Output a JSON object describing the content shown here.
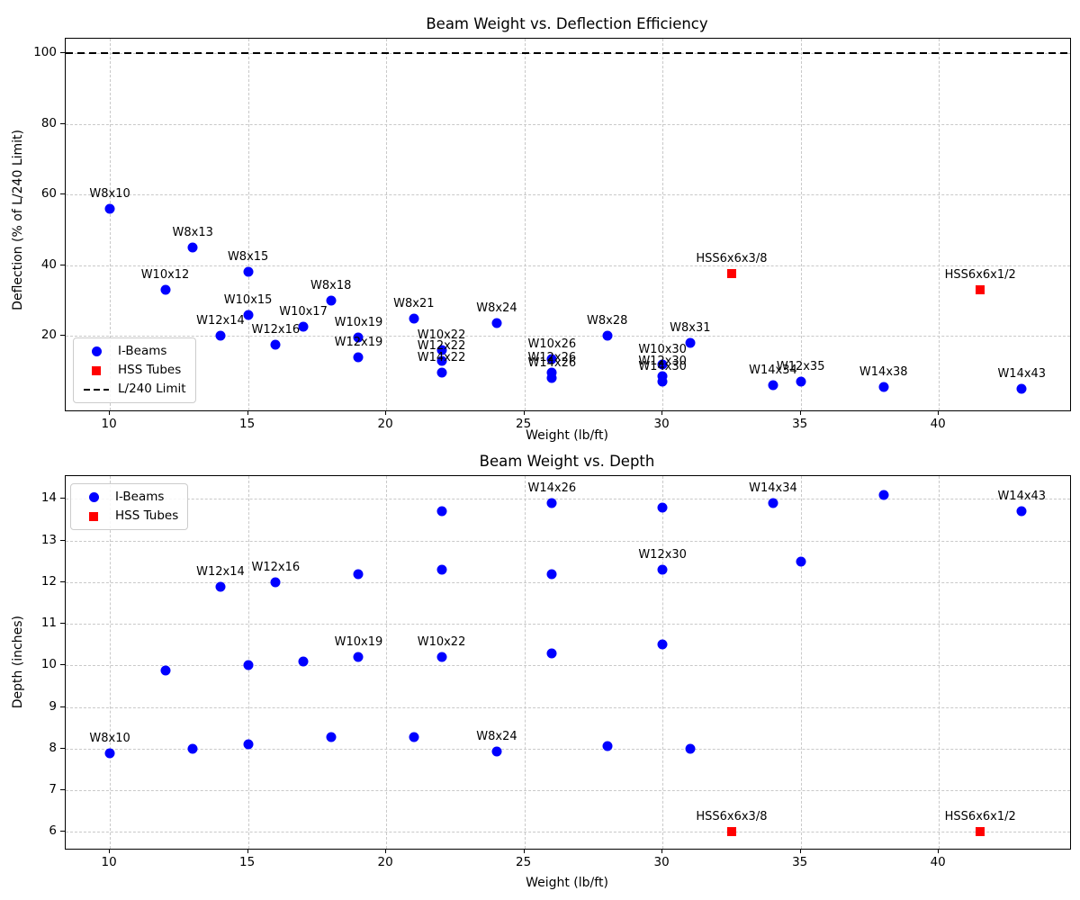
{
  "figure": {
    "background": "#ffffff"
  },
  "colors": {
    "ibeam": "#0000ff",
    "hss": "#ff0000",
    "limit_line": "#000000",
    "grid": "#c9c9c9"
  },
  "chart_data": [
    {
      "type": "scatter",
      "title": "Beam Weight vs. Deflection Efficiency",
      "xlabel": "Weight (lb/ft)",
      "ylabel": "Deflection (% of L/240 Limit)",
      "xlim": [
        8.4,
        44.75
      ],
      "ylim": [
        -1.1,
        104.1
      ],
      "xticks": [
        10,
        15,
        20,
        25,
        30,
        35,
        40
      ],
      "yticks": [
        20,
        40,
        60,
        80,
        100
      ],
      "grid": true,
      "legend_position": "lower left",
      "legend": [
        {
          "label": "I-Beams",
          "marker": "circle",
          "color": "#0000ff"
        },
        {
          "label": "HSS Tubes",
          "marker": "square",
          "color": "#ff0000"
        },
        {
          "label": "L/240 Limit",
          "marker": "dash",
          "color": "#000000"
        }
      ],
      "hline": {
        "y": 100,
        "style": "dashed",
        "color": "#000000",
        "label": "L/240 Limit"
      },
      "series": [
        {
          "name": "I-Beams",
          "marker": "circle",
          "color": "#0000ff",
          "points": [
            {
              "label": "W8x10",
              "x": 10,
              "y": 56,
              "show_label": true
            },
            {
              "label": "W10x12",
              "x": 12,
              "y": 33,
              "show_label": true
            },
            {
              "label": "W8x13",
              "x": 13,
              "y": 45,
              "show_label": true
            },
            {
              "label": "W12x14",
              "x": 14,
              "y": 20,
              "show_label": true
            },
            {
              "label": "W8x15",
              "x": 15,
              "y": 38,
              "show_label": true
            },
            {
              "label": "W10x15",
              "x": 15,
              "y": 26,
              "show_label": true
            },
            {
              "label": "W12x16",
              "x": 16,
              "y": 17.5,
              "show_label": true
            },
            {
              "label": "W10x17",
              "x": 17,
              "y": 22.5,
              "show_label": true
            },
            {
              "label": "W8x18",
              "x": 18,
              "y": 30,
              "show_label": true
            },
            {
              "label": "W10x19",
              "x": 19,
              "y": 19.5,
              "show_label": true
            },
            {
              "label": "W12x19",
              "x": 19,
              "y": 14,
              "show_label": true
            },
            {
              "label": "W8x21",
              "x": 21,
              "y": 25,
              "show_label": true
            },
            {
              "label": "W10x22",
              "x": 22,
              "y": 16,
              "show_label": true
            },
            {
              "label": "W12x22",
              "x": 22,
              "y": 13,
              "show_label": true
            },
            {
              "label": "W14x22",
              "x": 22,
              "y": 9.5,
              "show_label": true
            },
            {
              "label": "W8x24",
              "x": 24,
              "y": 23.5,
              "show_label": true
            },
            {
              "label": "W10x26",
              "x": 26,
              "y": 13.5,
              "show_label": true
            },
            {
              "label": "W12x26",
              "x": 26,
              "y": 9.5,
              "show_label": true
            },
            {
              "label": "W14x26",
              "x": 26,
              "y": 8,
              "show_label": true
            },
            {
              "label": "W8x28",
              "x": 28,
              "y": 20,
              "show_label": true
            },
            {
              "label": "W10x30",
              "x": 30,
              "y": 12,
              "show_label": true
            },
            {
              "label": "W12x30",
              "x": 30,
              "y": 8.5,
              "show_label": true
            },
            {
              "label": "W14x30",
              "x": 30,
              "y": 7,
              "show_label": true
            },
            {
              "label": "W8x31",
              "x": 31,
              "y": 18,
              "show_label": true
            },
            {
              "label": "W14x34",
              "x": 34,
              "y": 6,
              "show_label": true
            },
            {
              "label": "W12x35",
              "x": 35,
              "y": 7,
              "show_label": true
            },
            {
              "label": "W14x38",
              "x": 38,
              "y": 5.5,
              "show_label": true
            },
            {
              "label": "W14x43",
              "x": 43,
              "y": 5,
              "show_label": true
            }
          ]
        },
        {
          "name": "HSS Tubes",
          "marker": "square",
          "color": "#ff0000",
          "points": [
            {
              "label": "HSS6x6x3/8",
              "x": 32.5,
              "y": 37.5,
              "show_label": true
            },
            {
              "label": "HSS6x6x1/2",
              "x": 41.5,
              "y": 33,
              "show_label": true
            }
          ]
        }
      ]
    },
    {
      "type": "scatter",
      "title": "Beam Weight vs. Depth",
      "xlabel": "Weight (lb/ft)",
      "ylabel": "Depth (inches)",
      "xlim": [
        8.4,
        44.75
      ],
      "ylim": [
        5.6,
        14.55
      ],
      "xticks": [
        10,
        15,
        20,
        25,
        30,
        35,
        40
      ],
      "yticks": [
        6,
        7,
        8,
        9,
        10,
        11,
        12,
        13,
        14
      ],
      "grid": true,
      "legend_position": "upper left",
      "legend": [
        {
          "label": "I-Beams",
          "marker": "circle",
          "color": "#0000ff"
        },
        {
          "label": "HSS Tubes",
          "marker": "square",
          "color": "#ff0000"
        }
      ],
      "series": [
        {
          "name": "I-Beams",
          "marker": "circle",
          "color": "#0000ff",
          "points": [
            {
              "label": "W8x10",
              "x": 10,
              "y": 7.89,
              "show_label": true
            },
            {
              "label": "W10x12",
              "x": 12,
              "y": 9.87,
              "show_label": false
            },
            {
              "label": "W8x13",
              "x": 13,
              "y": 7.99,
              "show_label": false
            },
            {
              "label": "W12x14",
              "x": 14,
              "y": 11.9,
              "show_label": true
            },
            {
              "label": "W8x15",
              "x": 15,
              "y": 8.11,
              "show_label": false
            },
            {
              "label": "W10x15",
              "x": 15,
              "y": 10.0,
              "show_label": false
            },
            {
              "label": "W12x16",
              "x": 16,
              "y": 12.0,
              "show_label": true
            },
            {
              "label": "W10x17",
              "x": 17,
              "y": 10.1,
              "show_label": false
            },
            {
              "label": "W8x18",
              "x": 18,
              "y": 8.27,
              "show_label": false
            },
            {
              "label": "W10x19",
              "x": 19,
              "y": 10.2,
              "show_label": true
            },
            {
              "label": "W12x19",
              "x": 19,
              "y": 12.2,
              "show_label": false
            },
            {
              "label": "W8x21",
              "x": 21,
              "y": 8.28,
              "show_label": false
            },
            {
              "label": "W10x22",
              "x": 22,
              "y": 10.2,
              "show_label": true
            },
            {
              "label": "W12x22",
              "x": 22,
              "y": 12.3,
              "show_label": false
            },
            {
              "label": "W14x22",
              "x": 22,
              "y": 13.7,
              "show_label": false
            },
            {
              "label": "W8x24",
              "x": 24,
              "y": 7.93,
              "show_label": true
            },
            {
              "label": "W10x26",
              "x": 26,
              "y": 10.3,
              "show_label": false
            },
            {
              "label": "W12x26",
              "x": 26,
              "y": 12.2,
              "show_label": false
            },
            {
              "label": "W14x26",
              "x": 26,
              "y": 13.9,
              "show_label": true
            },
            {
              "label": "W8x28",
              "x": 28,
              "y": 8.06,
              "show_label": false
            },
            {
              "label": "W10x30",
              "x": 30,
              "y": 10.5,
              "show_label": false
            },
            {
              "label": "W12x30",
              "x": 30,
              "y": 12.3,
              "show_label": true
            },
            {
              "label": "W14x30",
              "x": 30,
              "y": 13.8,
              "show_label": false
            },
            {
              "label": "W8x31",
              "x": 31,
              "y": 8.0,
              "show_label": false
            },
            {
              "label": "W14x34",
              "x": 34,
              "y": 13.9,
              "show_label": true
            },
            {
              "label": "W12x35",
              "x": 35,
              "y": 12.5,
              "show_label": false
            },
            {
              "label": "W14x38",
              "x": 38,
              "y": 14.1,
              "show_label": false
            },
            {
              "label": "W14x43",
              "x": 43,
              "y": 13.7,
              "show_label": true
            }
          ]
        },
        {
          "name": "HSS Tubes",
          "marker": "square",
          "color": "#ff0000",
          "points": [
            {
              "label": "HSS6x6x3/8",
              "x": 32.5,
              "y": 6.0,
              "show_label": true
            },
            {
              "label": "HSS6x6x1/2",
              "x": 41.5,
              "y": 6.0,
              "show_label": true
            }
          ]
        }
      ]
    }
  ]
}
